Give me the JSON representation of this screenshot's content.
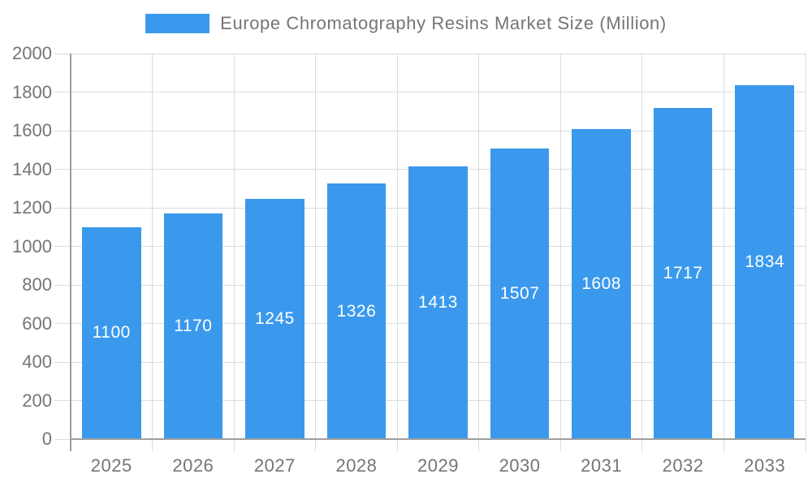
{
  "legend": {
    "label": "Europe Chromatography Resins Market Size (Million)"
  },
  "chart_data": {
    "type": "bar",
    "title": "Europe Chromatography Resins Market Size (Million)",
    "categories": [
      "2025",
      "2026",
      "2027",
      "2028",
      "2029",
      "2030",
      "2031",
      "2032",
      "2033"
    ],
    "values": [
      1100,
      1170,
      1245,
      1326,
      1413,
      1507,
      1608,
      1717,
      1834
    ],
    "xlabel": "",
    "ylabel": "",
    "ylim": [
      0,
      2000
    ],
    "yticks": [
      0,
      200,
      400,
      600,
      800,
      1000,
      1200,
      1400,
      1600,
      1800,
      2000
    ],
    "grid": true,
    "legend_position": "top",
    "bar_color": "#3A99EC",
    "bar_label_color": "#FFFFFF",
    "axis_text_color": "#757575",
    "gridline_color": "#DCDCDC",
    "axis_line_color": "#9E9E9E"
  }
}
